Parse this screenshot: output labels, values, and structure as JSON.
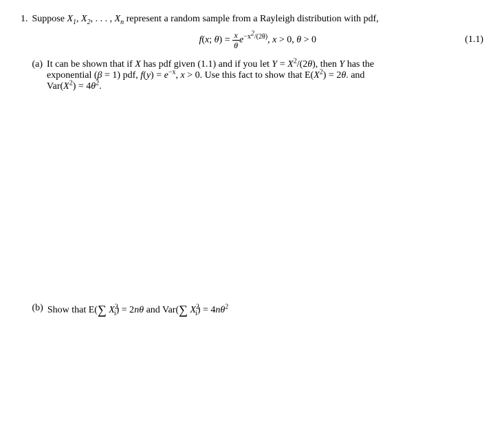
{
  "problem": {
    "number": "1.",
    "intro_a": "Suppose ",
    "intro_vars": "X",
    "intro_sub1": "1",
    "intro_sep1": ", ",
    "intro_sub2": "2",
    "intro_sep2": ", . . . , ",
    "intro_subn": "n",
    "intro_b": " represent a random sample from a Rayleigh distribution with pdf,",
    "eq": {
      "lhs_f": "f",
      "lhs_open": "(",
      "lhs_x": "x",
      "lhs_semi": "; ",
      "lhs_theta": "θ",
      "lhs_close": ") = ",
      "frac_top": "x",
      "frac_bot": "θ",
      "e": "e",
      "exp_neg": "−x",
      "exp_sq": "2",
      "exp_div": "/(2θ)",
      "comma": ",   ",
      "cond1_x": "x",
      "cond1": " > 0,   ",
      "cond2_th": "θ",
      "cond2": " > 0",
      "num": "(1.1)"
    },
    "a": {
      "label": "(a)",
      "l1a": "It can be shown that if ",
      "l1X": "X",
      "l1b": " has pdf given (1.1) and if you let ",
      "l1Y": "Y",
      "l1eq": " = ",
      "l1Xsq": "X",
      "l1sqexp": "2",
      "l1div": "/(2",
      "l1th": "θ",
      "l1close": "), then ",
      "l1Y2": "Y",
      "l1c": " has the",
      "l2a": "exponential (",
      "l2beta": "β",
      "l2b": " = 1) pdf, ",
      "l2f": "f",
      "l2open": "(",
      "l2y": "y",
      "l2close": ") = ",
      "l2e": "e",
      "l2exp": "−x",
      "l2comma": ", ",
      "l2x": "x",
      "l2gt": " > 0. Use this fact to show that E(",
      "l2Xsq": "X",
      "l2sqexp": "2",
      "l2d": ") = 2",
      "l2th": "θ",
      "l2e2": ".  and",
      "l3a": "Var(",
      "l3X": "X",
      "l3exp": "2",
      "l3b": ") = 4",
      "l3th": "θ",
      "l3exp2": "2",
      "l3c": "."
    },
    "b": {
      "label": "(b)",
      "t1": "Show that E(",
      "sum1": "∑",
      "X1": "X",
      "i1": "i",
      "sq1": "2",
      "t2": ") = 2",
      "n1": "nθ",
      "t3": " and Var(",
      "sum2": "∑",
      "X2": "X",
      "i2": "i",
      "sq2": "2",
      "t4": ") = 4",
      "n2": "nθ",
      "expf": "2"
    }
  }
}
